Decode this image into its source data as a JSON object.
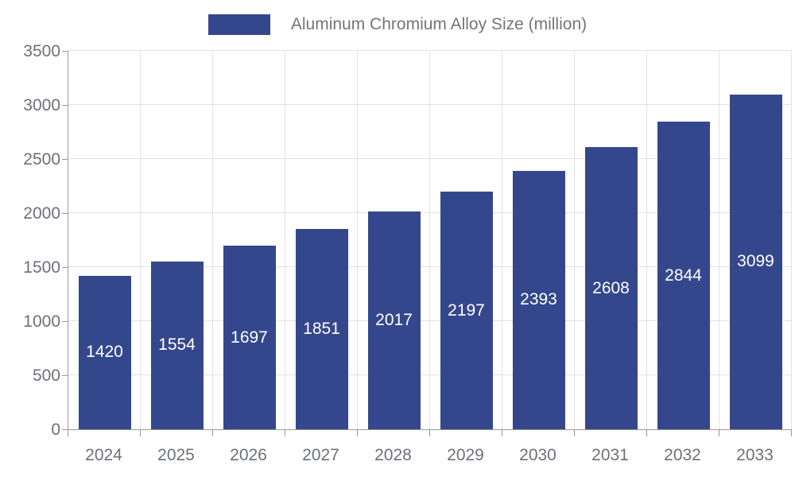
{
  "chart_data": {
    "type": "bar",
    "series_name": "Aluminum Chromium Alloy Size (million)",
    "categories": [
      "2024",
      "2025",
      "2026",
      "2027",
      "2028",
      "2029",
      "2030",
      "2031",
      "2032",
      "2033"
    ],
    "values": [
      1420,
      1554,
      1697,
      1851,
      2017,
      2197,
      2393,
      2608,
      2844,
      3099
    ],
    "title": "",
    "xlabel": "",
    "ylabel": "",
    "ylim": [
      0,
      3500
    ],
    "yticks": [
      0,
      500,
      1000,
      1500,
      2000,
      2500,
      3000,
      3500
    ],
    "grid": true,
    "legend_position": "top",
    "bar_color": "#35478c",
    "value_label_color": "#ffffff",
    "axis_label_color": "#6e7079",
    "legend_text_color": "#757575",
    "gridline_color": "#e2e2e2",
    "axis_line_color": "#999999"
  }
}
